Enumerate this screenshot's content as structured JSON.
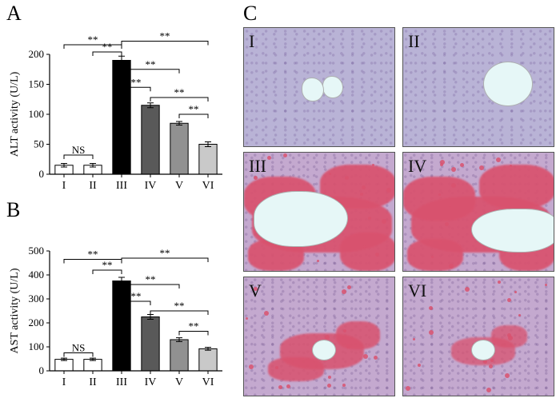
{
  "labels": {
    "A": "A",
    "B": "B",
    "C": "C"
  },
  "roman": [
    "I",
    "II",
    "III",
    "IV",
    "V",
    "VI"
  ],
  "charts": {
    "A": {
      "type": "bar",
      "ylabel": "ALT activity (U/L)",
      "categories": [
        "I",
        "II",
        "III",
        "IV",
        "V",
        "VI"
      ],
      "values": [
        15,
        15,
        190,
        115,
        85,
        50
      ],
      "errors": [
        3,
        3,
        7,
        4,
        3,
        4
      ],
      "bar_colors": [
        "#ffffff",
        "#ffffff",
        "#000000",
        "#595959",
        "#919191",
        "#c9c9c9"
      ],
      "ylim": [
        0,
        200
      ],
      "ytick_step": 50,
      "title_fontsize": 14,
      "label_fontsize": 13,
      "bar_width": 0.62,
      "axis_color": "#000000",
      "text_color": "#000000",
      "background_color": "#ffffff",
      "sig": [
        {
          "a": 0,
          "b": 1,
          "label": "NS",
          "level": 0,
          "y": 32
        },
        {
          "a": 0,
          "b": 2,
          "label": "**",
          "level": 4,
          "y": 216
        },
        {
          "a": 1,
          "b": 2,
          "label": "**",
          "level": 2,
          "y": 204
        },
        {
          "a": 2,
          "b": 3,
          "label": "**",
          "level": 0,
          "y": 145
        },
        {
          "a": 2,
          "b": 4,
          "label": "**",
          "level": 2,
          "y": 175
        },
        {
          "a": 2,
          "b": 5,
          "label": "**",
          "level": 4,
          "y": 222
        },
        {
          "a": 3,
          "b": 5,
          "label": "**",
          "level": 0,
          "y": 128
        },
        {
          "a": 4,
          "b": 5,
          "label": "**",
          "level": 0,
          "y": 100
        }
      ]
    },
    "B": {
      "type": "bar",
      "ylabel": "AST activity (U/L)",
      "categories": [
        "I",
        "II",
        "III",
        "IV",
        "V",
        "VI"
      ],
      "values": [
        48,
        48,
        375,
        225,
        130,
        92
      ],
      "errors": [
        5,
        5,
        15,
        10,
        8,
        6
      ],
      "bar_colors": [
        "#ffffff",
        "#ffffff",
        "#000000",
        "#595959",
        "#919191",
        "#c9c9c9"
      ],
      "ylim": [
        0,
        500
      ],
      "ytick_step": 100,
      "title_fontsize": 14,
      "label_fontsize": 13,
      "bar_width": 0.62,
      "axis_color": "#000000",
      "text_color": "#000000",
      "background_color": "#ffffff",
      "sig": [
        {
          "a": 0,
          "b": 1,
          "label": "NS",
          "level": 0,
          "y": 75
        },
        {
          "a": 0,
          "b": 2,
          "label": "**",
          "level": 4,
          "y": 465
        },
        {
          "a": 1,
          "b": 2,
          "label": "**",
          "level": 2,
          "y": 420
        },
        {
          "a": 2,
          "b": 3,
          "label": "**",
          "level": 0,
          "y": 290
        },
        {
          "a": 2,
          "b": 4,
          "label": "**",
          "level": 2,
          "y": 360
        },
        {
          "a": 2,
          "b": 5,
          "label": "**",
          "level": 4,
          "y": 470
        },
        {
          "a": 3,
          "b": 5,
          "label": "**",
          "level": 0,
          "y": 250
        },
        {
          "a": 4,
          "b": 5,
          "label": "**",
          "level": 0,
          "y": 165
        }
      ]
    }
  },
  "histology": {
    "panels": [
      {
        "id": "I",
        "bg": "base",
        "stain": "none",
        "vessel": "small-pair"
      },
      {
        "id": "II",
        "bg": "base",
        "stain": "none",
        "vessel": "round"
      },
      {
        "id": "III",
        "bg": "pink",
        "stain": "heavy",
        "vessel": "large"
      },
      {
        "id": "IV",
        "bg": "pink",
        "stain": "heavy",
        "vessel": "large-right"
      },
      {
        "id": "V",
        "bg": "pink",
        "stain": "moderate",
        "vessel": "small-center"
      },
      {
        "id": "VI",
        "bg": "pink",
        "stain": "light",
        "vessel": "small-center"
      }
    ],
    "colors": {
      "base": "#b9b3d6",
      "pink": "#c4a9cf",
      "stain": "#d9526e",
      "vessel": "#e6f7f7",
      "border": "#555555"
    }
  }
}
